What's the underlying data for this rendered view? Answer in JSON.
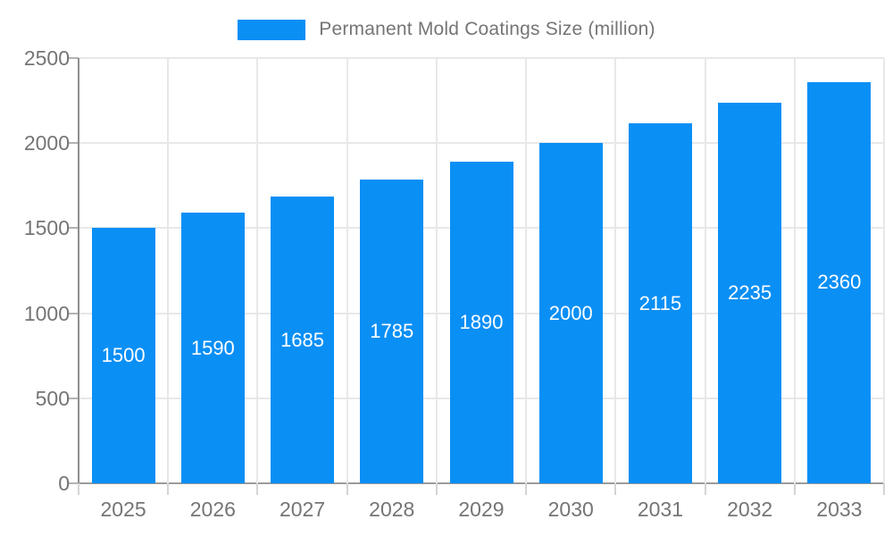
{
  "legend": {
    "label": "Permanent Mold Coatings Size (million)"
  },
  "colors": {
    "bar": "#0a8ff5",
    "bar_label": "#ffffff",
    "axis_text": "#757575",
    "gridline": "#e8e8e8",
    "axis_line": "#9b9b9b",
    "background": "#ffffff"
  },
  "chart_data": {
    "type": "bar",
    "title": "Permanent Mold Coatings Size (million)",
    "categories": [
      "2025",
      "2026",
      "2027",
      "2028",
      "2029",
      "2030",
      "2031",
      "2032",
      "2033"
    ],
    "series": [
      {
        "name": "Permanent Mold Coatings Size (million)",
        "values": [
          1500,
          1590,
          1685,
          1785,
          1890,
          2000,
          2115,
          2235,
          2360
        ]
      }
    ],
    "bar_labels": [
      "1500",
      "1590",
      "1685",
      "1785",
      "1890",
      "2000",
      "2115",
      "2235",
      "2360"
    ],
    "xlabel": "",
    "ylabel": "",
    "ylim": [
      0,
      2500
    ],
    "yticks": [
      0,
      500,
      1000,
      1500,
      2000,
      2500
    ],
    "ytick_labels": [
      "0",
      "500",
      "1000",
      "1500",
      "2000",
      "2500"
    ],
    "grid": true,
    "legend_position": "top",
    "bar_label_position": "middle"
  }
}
